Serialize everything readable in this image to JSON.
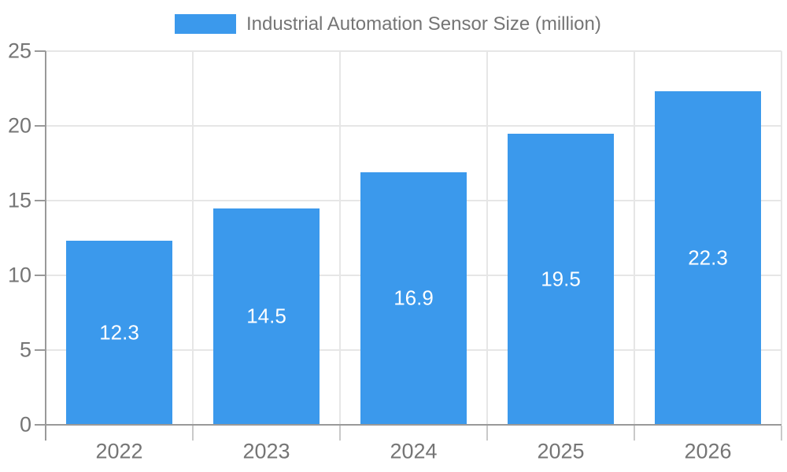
{
  "chart_data": {
    "type": "bar",
    "title": "Industrial Automation Sensor Size (million)",
    "legend_position": "top-center",
    "categories": [
      "2022",
      "2023",
      "2024",
      "2025",
      "2026"
    ],
    "values": [
      12.3,
      14.5,
      16.9,
      19.5,
      22.3
    ],
    "value_labels": [
      "12.3",
      "14.5",
      "16.9",
      "19.5",
      "22.3"
    ],
    "series_name": "Industrial Automation Sensor Size (million)",
    "xlabel": "",
    "ylabel": "",
    "ylim": [
      0,
      25
    ],
    "yticks": [
      0,
      5,
      10,
      15,
      20,
      25
    ],
    "grid": "horizontal and vertical light gridlines, ticks outside axes",
    "value_label_position": "centered inside bar",
    "colors": {
      "bar": "#3B99EC",
      "axis": "#999999",
      "x_tick": "#C9C9C9",
      "grid": "#E6E6E6",
      "tick_label": "#757575",
      "legend_text": "#757575",
      "value_label": "#FFFFFF",
      "background": "#FFFFFF"
    }
  }
}
